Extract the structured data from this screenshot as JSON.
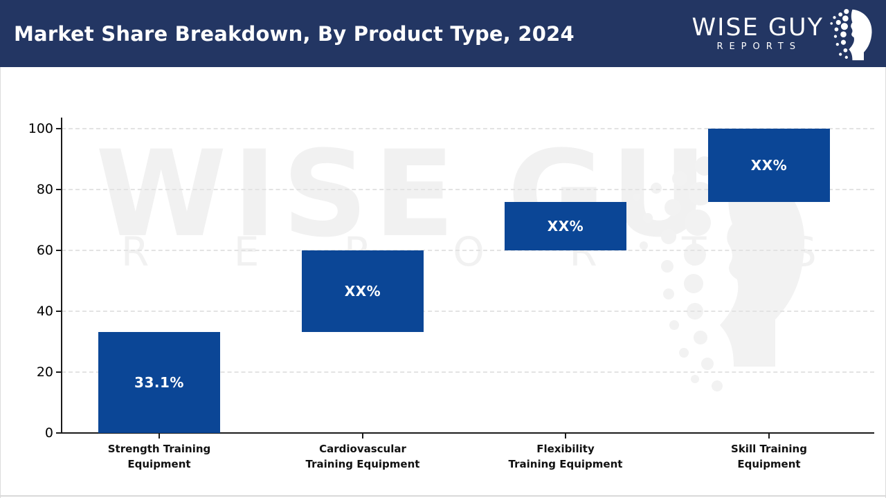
{
  "header": {
    "title": "Market Share Breakdown, By Product Type, 2024",
    "logo": {
      "wordmark": "WISE GUY",
      "subtext": "REPORTS"
    }
  },
  "watermark": {
    "line1": "WISE GU",
    "line2": "R E P O R T S"
  },
  "colors": {
    "header_bg": "#233663",
    "bar": "#0b4696",
    "grid": "#e3e3e3",
    "axis": "#1a1a1a",
    "bar_label": "#ffffff",
    "watermark": "#f2f2f2"
  },
  "chart_data": {
    "type": "bar",
    "subtype": "waterfall",
    "title": "Market Share Breakdown, By Product Type, 2024",
    "categories": [
      "Strength Training\nEquipment",
      "Cardiovascular\nTraining Equipment",
      "Flexibility\nTraining Equipment",
      "Skill Training\nEquipment"
    ],
    "segments": [
      {
        "category": "Strength Training Equipment",
        "start": 0,
        "end": 33.1,
        "label": "33.1%"
      },
      {
        "category": "Cardiovascular Training Equipment",
        "start": 33.1,
        "end": 60,
        "label": "XX%"
      },
      {
        "category": "Flexibility Training Equipment",
        "start": 60,
        "end": 76,
        "label": "XX%"
      },
      {
        "category": "Skill Training Equipment",
        "start": 76,
        "end": 100,
        "label": "XX%"
      }
    ],
    "xlabel": "",
    "ylabel": "",
    "ylim": [
      0,
      100
    ],
    "yticks": [
      0,
      20,
      40,
      60,
      80,
      100
    ],
    "grid": "dashed-horizontal",
    "legend": null
  }
}
